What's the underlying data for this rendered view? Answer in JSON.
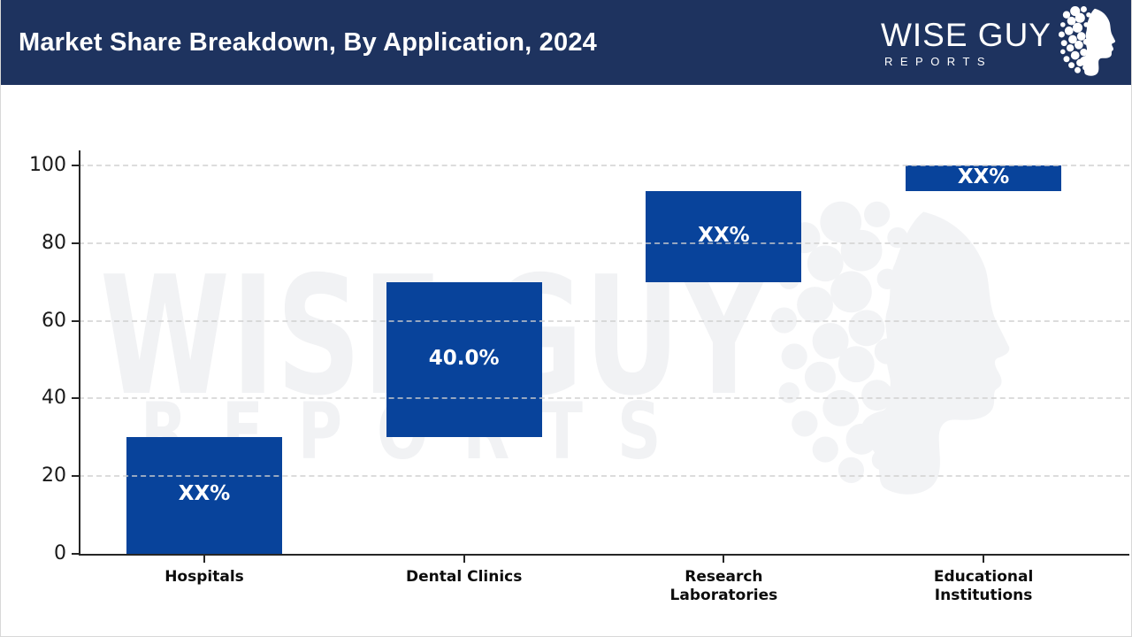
{
  "header": {
    "title": "Market Share Breakdown, By Application, 2024",
    "logo": {
      "wordmark": "WISE GUY",
      "subtext": "REPORTS"
    }
  },
  "watermark": {
    "line1": "WISE GUY",
    "line2": "REPORTS"
  },
  "colors": {
    "header_background": "#1e335f",
    "bar_blue": "#08439b",
    "bar_label_white": "#ffffff",
    "gridline_gray": "#d9d9d9",
    "watermark_gray": "#f1f2f4"
  },
  "chart_data": {
    "type": "bar",
    "subtype": "floating-segment-waterfall",
    "title": "Market Share Breakdown, By Application, 2024",
    "xlabel": "",
    "ylabel": "",
    "categories": [
      "Hospitals",
      "Dental Clinics",
      "Research Laboratories",
      "Educational Institutions"
    ],
    "category_label_lines": [
      [
        "Hospitals"
      ],
      [
        "Dental Clinics"
      ],
      [
        "Research",
        "Laboratories"
      ],
      [
        "Educational",
        "Institutions"
      ]
    ],
    "segments": [
      {
        "category": "Hospitals",
        "start": 0,
        "end": 30,
        "value": 30,
        "label": "XX%"
      },
      {
        "category": "Dental Clinics",
        "start": 30,
        "end": 70,
        "value": 40,
        "label": "40.0%"
      },
      {
        "category": "Research Laboratories",
        "start": 70,
        "end": 93.3,
        "value": 23.3,
        "label": "XX%"
      },
      {
        "category": "Educational Institutions",
        "start": 93.3,
        "end": 100,
        "value": 6.7,
        "label": "XX%"
      }
    ],
    "yticks": [
      0,
      20,
      40,
      60,
      80,
      100
    ],
    "ylim": [
      0,
      104
    ],
    "grid": true,
    "grid_style": "dashed",
    "legend_position": "none"
  }
}
